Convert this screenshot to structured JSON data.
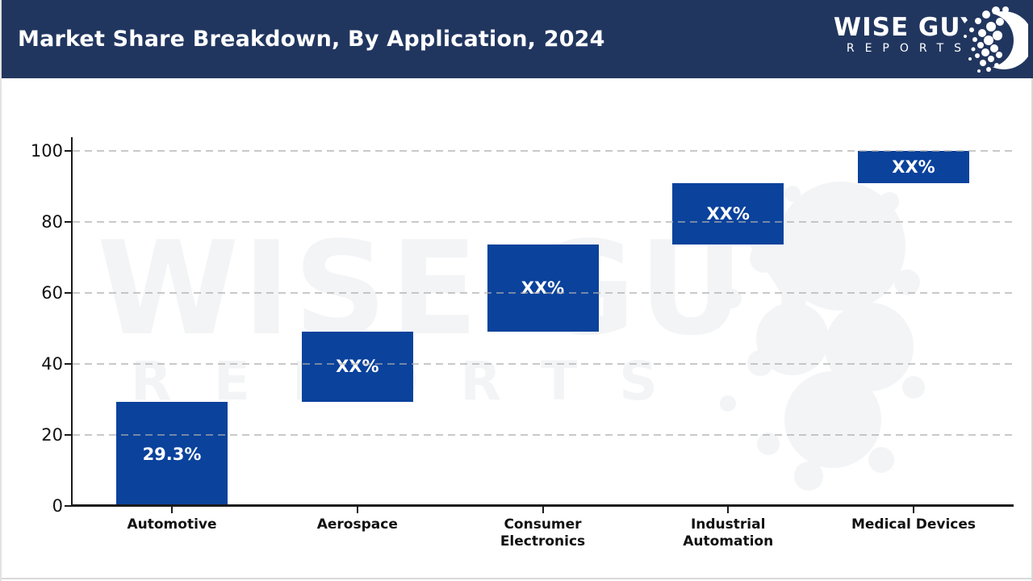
{
  "header": {
    "title": "Market Share Breakdown, By Application, 2024",
    "bg_color": "#21365f",
    "logo": {
      "wise_guy": "WISE GUY",
      "reports": "REPORTS"
    }
  },
  "watermark": {
    "wise_guy": "WISE GUY",
    "reports": "REPORTS"
  },
  "chart_data": {
    "type": "bar",
    "subtype": "waterfall-floating-bars",
    "title": "Market Share Breakdown, By Application, 2024",
    "xlabel": "",
    "ylabel": "",
    "ylim": [
      0,
      100
    ],
    "yticks": [
      0,
      20,
      40,
      60,
      80,
      100
    ],
    "grid": "horizontal-dashed",
    "legend": "none",
    "categories": [
      "Automotive",
      "Aerospace",
      "Consumer Electronics",
      "Industrial Automation",
      "Medical Devices"
    ],
    "segments": [
      {
        "category": "Automotive",
        "start": 0,
        "end": 29.3,
        "label": "29.3%"
      },
      {
        "category": "Aerospace",
        "start": 29.3,
        "end": 49.2,
        "label": "XX%"
      },
      {
        "category": "Consumer Electronics",
        "start": 49.2,
        "end": 73.7,
        "label": "XX%"
      },
      {
        "category": "Industrial Automation",
        "start": 73.7,
        "end": 90.9,
        "label": "XX%"
      },
      {
        "category": "Medical Devices",
        "start": 90.9,
        "end": 100,
        "label": "XX%"
      }
    ],
    "style": {
      "bar_color": "#0a429c",
      "bar_label_color": "#ffffff",
      "axis_color": "#1a1a1a"
    }
  }
}
